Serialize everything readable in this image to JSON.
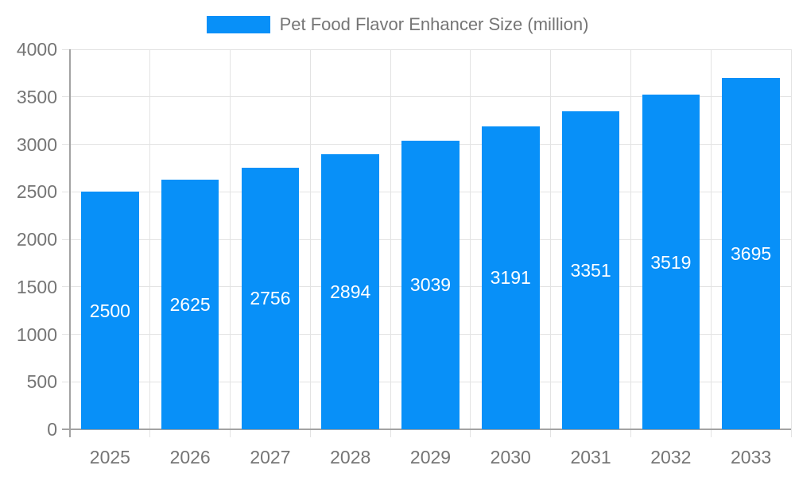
{
  "chart_data": {
    "type": "bar",
    "title": "Pet Food Flavor Enhancer Size (million)",
    "categories": [
      "2025",
      "2026",
      "2027",
      "2028",
      "2029",
      "2030",
      "2031",
      "2032",
      "2033"
    ],
    "values": [
      2500,
      2625,
      2756,
      2894,
      3039,
      3191,
      3351,
      3519,
      3695
    ],
    "series_name": "Pet Food Flavor Enhancer Size (million)",
    "xlabel": "",
    "ylabel": "",
    "ylim": [
      0,
      4000
    ],
    "ytick_step": 500,
    "ytick_labels": [
      "0",
      "500",
      "1000",
      "1500",
      "2000",
      "2500",
      "3000",
      "3500",
      "4000"
    ],
    "grid": true,
    "legend_position": "top",
    "value_labels": "inside-middle"
  },
  "colors": {
    "bar": "#0890f8",
    "bar_value_label": "#ffffff",
    "axis_line": "#a3a3a3",
    "gridline": "#e3e3e3",
    "tick_text": "#757575",
    "background": "#ffffff"
  }
}
